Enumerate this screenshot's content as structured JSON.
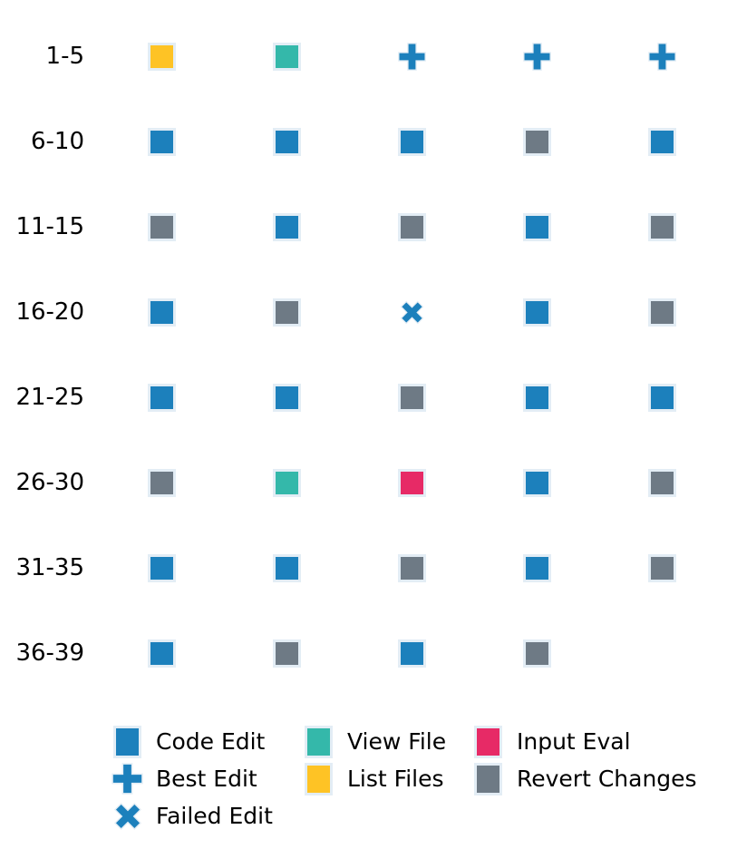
{
  "chart_data": {
    "type": "scatter",
    "title": "",
    "xlabel": "",
    "ylabel": "",
    "grid_lines": false,
    "background": "#ffffff",
    "marker_edge_color": "#e3edf5",
    "text_color": "#000000",
    "rows": [
      "1-5",
      "6-10",
      "11-15",
      "16-20",
      "21-25",
      "26-30",
      "31-35",
      "36-39"
    ],
    "columns_per_row": 5,
    "grid": [
      [
        "list_files",
        "view_file",
        "best_edit",
        "best_edit",
        "best_edit"
      ],
      [
        "code_edit",
        "code_edit",
        "code_edit",
        "revert_changes",
        "code_edit"
      ],
      [
        "revert_changes",
        "code_edit",
        "revert_changes",
        "code_edit",
        "revert_changes"
      ],
      [
        "code_edit",
        "revert_changes",
        "failed_edit",
        "code_edit",
        "revert_changes"
      ],
      [
        "code_edit",
        "code_edit",
        "revert_changes",
        "code_edit",
        "code_edit"
      ],
      [
        "revert_changes",
        "view_file",
        "input_eval",
        "code_edit",
        "revert_changes"
      ],
      [
        "code_edit",
        "code_edit",
        "revert_changes",
        "code_edit",
        "revert_changes"
      ],
      [
        "code_edit",
        "revert_changes",
        "code_edit",
        "revert_changes",
        null
      ]
    ],
    "legend": [
      {
        "key": "code_edit",
        "label": "Code Edit",
        "marker": "square",
        "color": "#1c80bc"
      },
      {
        "key": "view_file",
        "label": "View File",
        "marker": "square",
        "color": "#34b8aa"
      },
      {
        "key": "input_eval",
        "label": "Input Eval",
        "marker": "square",
        "color": "#e72a66"
      },
      {
        "key": "best_edit",
        "label": "Best Edit",
        "marker": "plus",
        "color": "#1c80bc"
      },
      {
        "key": "list_files",
        "label": "List Files",
        "marker": "square",
        "color": "#fec325"
      },
      {
        "key": "revert_changes",
        "label": "Revert Changes",
        "marker": "square",
        "color": "#6e7a85"
      },
      {
        "key": "failed_edit",
        "label": "Failed Edit",
        "marker": "x",
        "color": "#1c80bc"
      }
    ],
    "legend_position": "bottom",
    "legend_layout": [
      [
        "code_edit",
        "view_file",
        "input_eval"
      ],
      [
        "best_edit",
        "list_files",
        "revert_changes"
      ],
      [
        "failed_edit"
      ]
    ]
  }
}
